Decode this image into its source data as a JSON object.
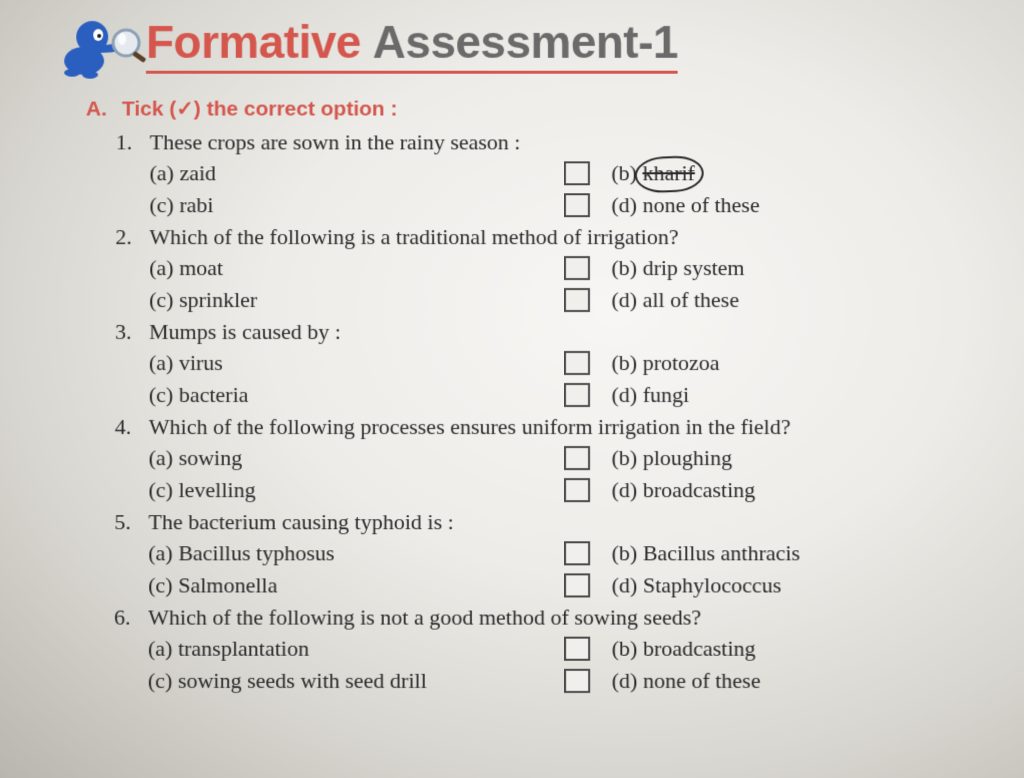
{
  "title": {
    "wordA": "Formative",
    "wordB": "Assessment-1"
  },
  "section": {
    "letter": "A.",
    "instruction": "Tick (✓) the correct option :"
  },
  "colors": {
    "accent": "#d4564d",
    "grey_title": "#6a6a6a",
    "text": "#2a2a2a",
    "box_border": "#4a4a4a",
    "mascot_blue": "#2a5fbf",
    "mascot_lens": "#cfd4d8",
    "mascot_handle": "#5a4026"
  },
  "questions": [
    {
      "num": "1.",
      "text": "These crops are sown in the rainy season :",
      "a": "(a) zaid",
      "b": "(b) kharif",
      "c": "(c) rabi",
      "d": "(d) none of these",
      "b_circled": true,
      "b_struck": true
    },
    {
      "num": "2.",
      "text": "Which of the following is a traditional method of irrigation?",
      "a": "(a) moat",
      "b": "(b) drip system",
      "c": "(c) sprinkler",
      "d": "(d) all of these"
    },
    {
      "num": "3.",
      "text": "Mumps is caused by :",
      "a": "(a) virus",
      "b": "(b) protozoa",
      "c": "(c) bacteria",
      "d": "(d) fungi"
    },
    {
      "num": "4.",
      "text": "Which of the following processes ensures uniform irrigation in the field?",
      "a": "(a) sowing",
      "b": "(b) ploughing",
      "c": "(c) levelling",
      "d": "(d) broadcasting"
    },
    {
      "num": "5.",
      "text": "The bacterium causing typhoid is :",
      "a": "(a) Bacillus typhosus",
      "b": "(b) Bacillus anthracis",
      "c": "(c) Salmonella",
      "d": "(d) Staphylococcus"
    },
    {
      "num": "6.",
      "text": "Which of the following is not a good method of sowing seeds?",
      "a": "(a) transplantation",
      "b": "(b) broadcasting",
      "c": "(c) sowing seeds with seed drill",
      "d": "(d) none of these"
    }
  ]
}
